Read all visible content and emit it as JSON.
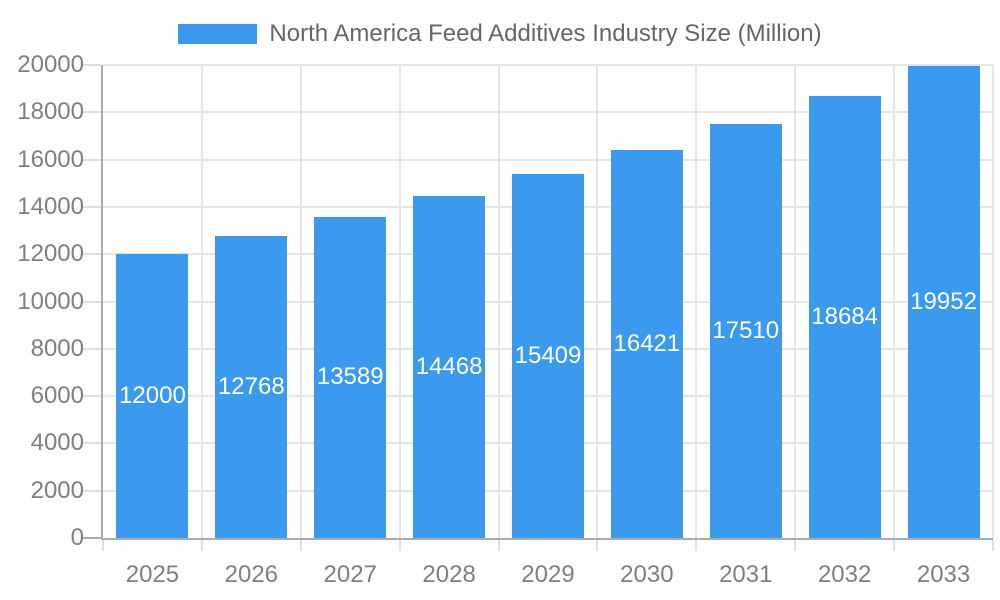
{
  "chart_data": {
    "type": "bar",
    "title": "North America Feed Additives Industry Size (Million)",
    "categories": [
      "2025",
      "2026",
      "2027",
      "2028",
      "2029",
      "2030",
      "2031",
      "2032",
      "2033"
    ],
    "values": [
      12000,
      12768,
      13589,
      14468,
      15409,
      16421,
      17510,
      18684,
      19952
    ],
    "xlabel": "",
    "ylabel": "",
    "ylim": [
      0,
      20000
    ],
    "ytick_step": 2000,
    "value_labels_position": "inside-center",
    "legend_position": "top",
    "grid": true,
    "bar_color": "#3b9aee",
    "value_label_color": "#ffffff",
    "axis_label_color": "#808080",
    "legend_text_color": "#666666"
  }
}
